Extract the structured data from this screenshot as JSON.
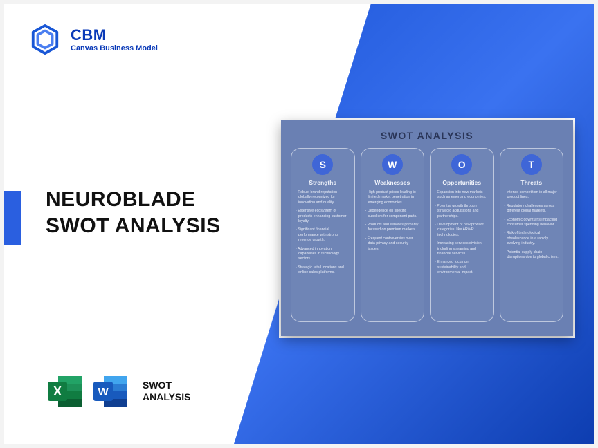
{
  "brand": {
    "name": "CBM",
    "subtitle": "Canvas Business Model",
    "color": "#0a3ab8"
  },
  "title_line1": "NEUROBLADE",
  "title_line2": "SWOT ANALYSIS",
  "bottom_label_line1": "SWOT",
  "bottom_label_line2": "ANALYSIS",
  "accent_color": "#2a5fe0",
  "diagonal_gradient": [
    "#1e56d8",
    "#3a72f0",
    "#0d3db0"
  ],
  "icons": {
    "excel": {
      "bg": "#107c41",
      "letter": "X"
    },
    "word": {
      "bg": "#185abd",
      "letter": "W"
    }
  },
  "swot": {
    "heading": "SWOT ANALYSIS",
    "card_bg": "#6a80b3",
    "badge_bg": "#3f66d7",
    "columns": [
      {
        "letter": "S",
        "title": "Strengths",
        "items": [
          "Robust brand reputation globally recognized for innovation and quality.",
          "Extensive ecosystem of products enhancing customer loyalty.",
          "Significant financial performance with strong revenue growth.",
          "Advanced innovation capabilities in technology sectors.",
          "Strategic retail locations and online sales platforms."
        ]
      },
      {
        "letter": "W",
        "title": "Weaknesses",
        "items": [
          "High product prices leading to limited market penetration in emerging economies.",
          "Dependence on specific suppliers for component parts.",
          "Products and services primarily focused on premium markets.",
          "Frequent controversies over data privacy and security issues."
        ]
      },
      {
        "letter": "O",
        "title": "Opportunities",
        "items": [
          "Expansion into new markets such as emerging economies.",
          "Potential growth through strategic acquisitions and partnerships.",
          "Development of new product categories, like AR/VR technologies.",
          "Increasing services division, including streaming and financial services.",
          "Enhanced focus on sustainability and environmental impact."
        ]
      },
      {
        "letter": "T",
        "title": "Threats",
        "items": [
          "Intense competition in all major product lines.",
          "Regulatory challenges across different global markets.",
          "Economic downturns impacting consumer spending behavior.",
          "Risk of technological obsolescence in a rapidly evolving industry.",
          "Potential supply chain disruptions due to global crises."
        ]
      }
    ]
  }
}
